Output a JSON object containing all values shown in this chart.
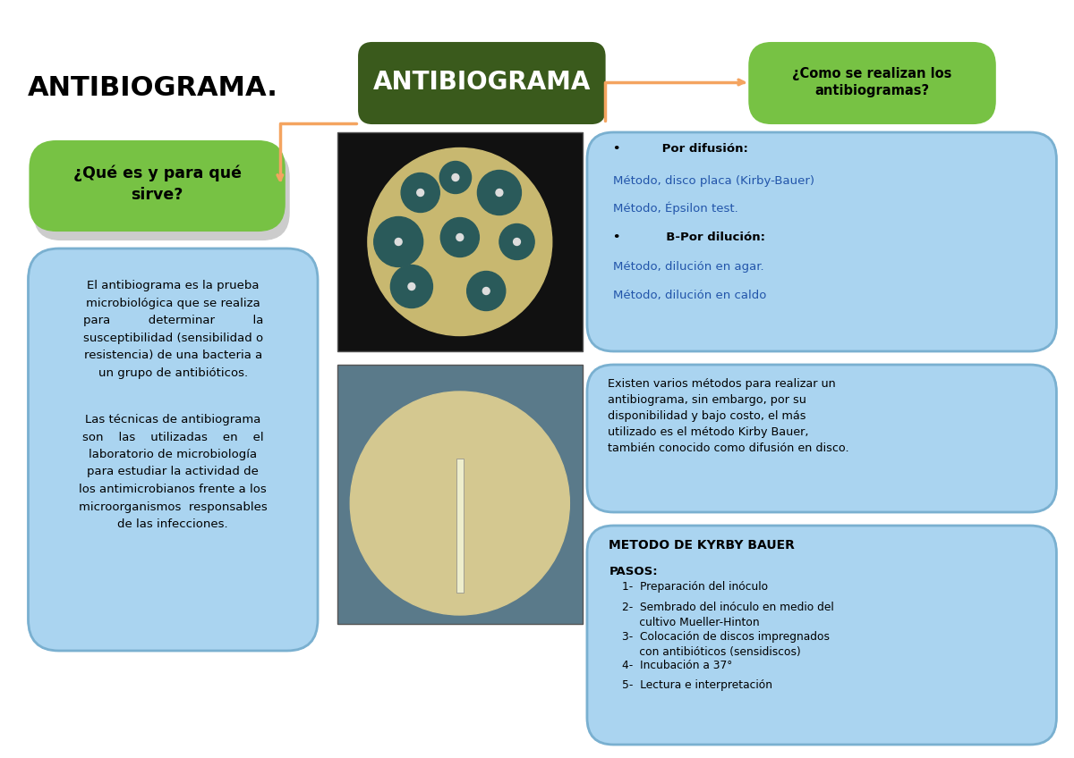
{
  "bg_color": "#ffffff",
  "title_left": "ANTIBIOGRAMA.",
  "title_center": "ANTIBIOGRAMA",
  "center_box_color": "#3a5a1c",
  "center_box_text_color": "#ffffff",
  "green_box_color": "#77c244",
  "green_box_text_color": "#000000",
  "blue_box_color": "#aad4f0",
  "blue_box_text_color": "#000000",
  "dark_blue_text_color": "#2255aa",
  "gray_shadow_color": "#cccccc",
  "arrow_color": "#f4a460",
  "left_green_box_text": "¿Qué es y para qué\nsirve?",
  "right_green_box_text": "¿Como se realizan los\nantibiogramas?",
  "left_blue_box_text_para1": "El antibiograma es la prueba\nmicrobiológica que se realiza\npara          determinar          la\nsusceptibilidad (sensibilidad o\nresistencia) de una bacteria a\nun grupo de antibióticos.",
  "left_blue_box_text_para2": "Las técnicas de antibiograma\nson    las    utilizadas    en    el\nlaboratorio de microbiología\npara estudiar la actividad de\nlos antimicrobianos frente a los\nmicroorganismos  responsables\nde las infecciones.",
  "right_blue_box1_lines": [
    "•          Por difusión:",
    "Método, disco placa (Kirby-Bauer)",
    "Método, Épsilon test.",
    "•           B-Por dilución:",
    "Método, dilución en agar.",
    "Método, dilución en caldo"
  ],
  "right_blue_box2_text": "Existen varios métodos para realizar un\nantibiograma, sin embargo, por su\ndisponibilidad y bajo costo, el más\nutilizado es el método Kirby Bauer,\ntambién conocido como difusión en disco.",
  "right_blue_box3_title": "METODO DE KYRBY BAUER",
  "right_blue_box3_subtitle": "PASOS:",
  "right_blue_box3_steps": [
    "1-  Preparación del inóculo",
    "2-  Sembrado del inóculo en medio del\n     cultivo Mueller-Hinton",
    "3-  Colocación de discos impregnados\n     con antibióticos (sensidiscos)",
    "4-  Incubación a 37°",
    "5-  Lectura e interpretación"
  ]
}
